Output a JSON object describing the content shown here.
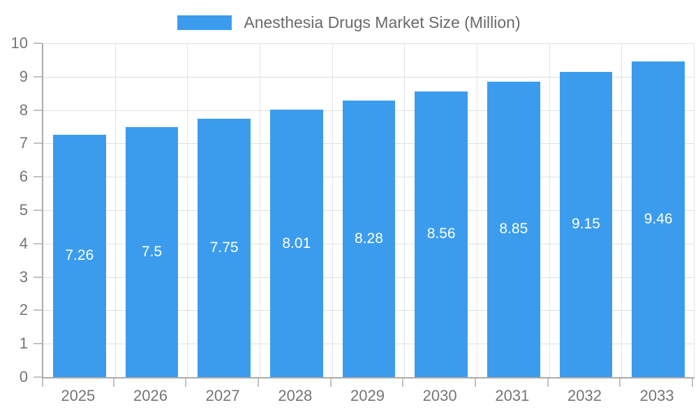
{
  "chart_data": {
    "type": "bar",
    "title": "Anesthesia Drugs Market Size (Million)",
    "categories": [
      "2025",
      "2026",
      "2027",
      "2028",
      "2029",
      "2030",
      "2031",
      "2032",
      "2033"
    ],
    "values": [
      7.26,
      7.5,
      7.75,
      8.01,
      8.28,
      8.56,
      8.85,
      9.15,
      9.46
    ],
    "value_labels": [
      "7.26",
      "7.5",
      "7.75",
      "8.01",
      "8.28",
      "8.56",
      "8.85",
      "9.15",
      "9.46"
    ],
    "xlabel": "",
    "ylabel": "",
    "ylim": [
      0,
      10
    ],
    "y_ticks": [
      0,
      1,
      2,
      3,
      4,
      5,
      6,
      7,
      8,
      9,
      10
    ],
    "grid": true,
    "legend_position": "top",
    "bar_color": "#3B9CEE",
    "value_label_color": "#ffffff",
    "axis_text_color": "#757575",
    "title_color": "#6A6A6A",
    "gridline_color": "#E4E4E4"
  }
}
